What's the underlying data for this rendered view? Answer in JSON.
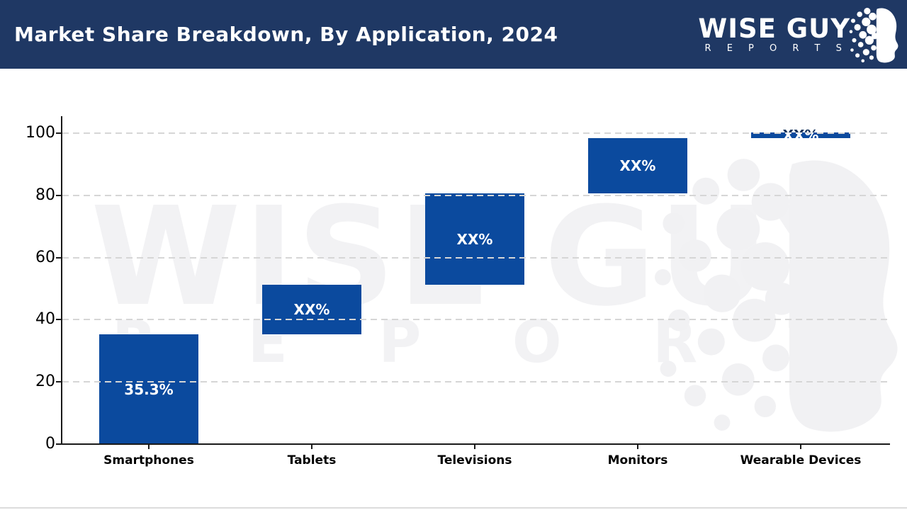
{
  "header": {
    "title": "Market Share Breakdown, By Application, 2024",
    "logo": {
      "line1": "WISE GUY",
      "line2": "R E P O R T S"
    }
  },
  "watermark": {
    "line1": "WISE GUY",
    "line2": "R E P O R T S"
  },
  "colors": {
    "header_bg": "#1f3864",
    "bar": "#0b4a9e",
    "bar_label": "#ffffff",
    "grid": "#d6d6d6",
    "axis": "#1a1a1a",
    "watermark": "#f2f2f4"
  },
  "chart_data": {
    "type": "bar",
    "subtype": "waterfall",
    "title": "Market Share Breakdown, By Application, 2024",
    "xlabel": "",
    "ylabel": "",
    "categories": [
      "Smartphones",
      "Tablets",
      "Televisions",
      "Monitors",
      "Wearable Devices"
    ],
    "segments": [
      {
        "category": "Smartphones",
        "start": 0,
        "end": 35.3,
        "label": "35.3%"
      },
      {
        "category": "Tablets",
        "start": 35.3,
        "end": 51.2,
        "label": "XX%"
      },
      {
        "category": "Televisions",
        "start": 51.2,
        "end": 80.6,
        "label": "XX%"
      },
      {
        "category": "Monitors",
        "start": 80.7,
        "end": 98.3,
        "label": "XX%"
      },
      {
        "category": "Wearable Devices",
        "start": 98.3,
        "end": 100.2,
        "label": "XX%"
      }
    ],
    "yticks": [
      0,
      20,
      40,
      60,
      80,
      100
    ],
    "ylim": [
      0,
      103
    ],
    "grid": "horizontal dashed, drawn over bars",
    "legend": "none"
  }
}
